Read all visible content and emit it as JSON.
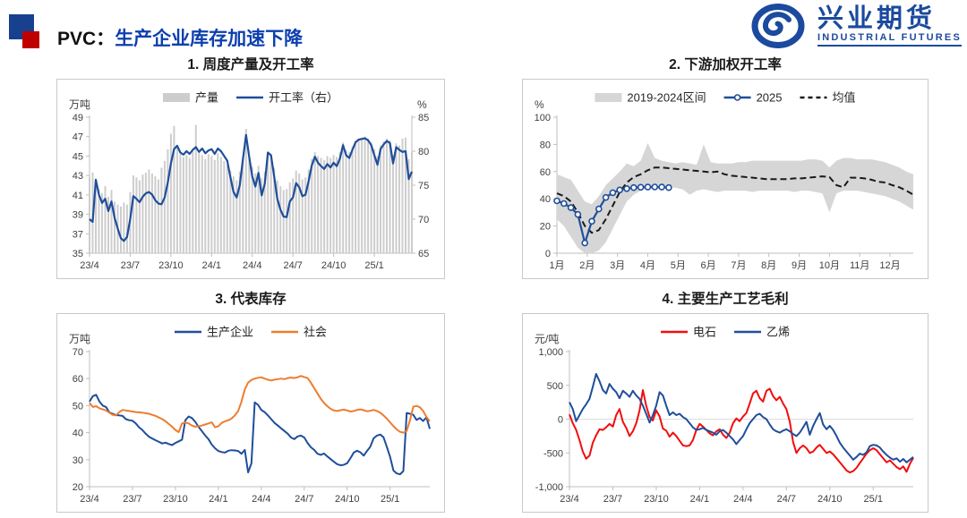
{
  "header": {
    "product": "PVC：",
    "headline": "生产企业库存加速下降"
  },
  "logo": {
    "cn": "兴业期货",
    "en": "INDUSTRIAL FUTURES"
  },
  "colors": {
    "blue": "#1f4e9b",
    "orange": "#ed7d31",
    "red": "#f20d0d",
    "gray": "#d6d6d6",
    "mean_dash": "#1a1a1a",
    "axis": "#bfbfbf",
    "tick_text": "#404040",
    "title_blue": "#0d3fae",
    "logo_blue": "#1b4a9e",
    "square_blue": "#17418f",
    "square_red": "#c00000"
  },
  "chart_data": [
    {
      "id": "c1",
      "type": "bar+line",
      "title": "1. 周度产量及开工率",
      "unit_left": "万吨",
      "unit_right": "%",
      "legend": [
        {
          "label": "产量",
          "type": "bar",
          "color": "#cdcdcd"
        },
        {
          "label": "开工率（右）",
          "type": "line",
          "color": "#1f4e9b"
        }
      ],
      "y_axis": {
        "min": 35,
        "max": 49,
        "step": 2
      },
      "right_axis": {
        "min": 65,
        "max": 85,
        "step": 5
      },
      "x_labels": [
        "23/4",
        "23/7",
        "23/10",
        "24/1",
        "24/4",
        "24/7",
        "24/10",
        "25/1"
      ],
      "bars": {
        "name": "产量",
        "color": "#cdcdcd",
        "values": [
          42.8,
          43.3,
          42.1,
          41.6,
          41.2,
          41.9,
          40.8,
          41.5,
          40.3,
          40,
          39.8,
          40.2,
          40,
          41.3,
          43,
          42.8,
          42.5,
          43.1,
          43.3,
          43.6,
          43.2,
          42.9,
          42.6,
          43.8,
          44.5,
          45.7,
          47.3,
          48.1,
          46.1,
          45.2,
          44.9,
          45.1,
          44.8,
          45.5,
          48.2,
          45.3,
          45.1,
          44.7,
          45.2,
          45,
          44.6,
          45.3,
          44.9,
          44.5,
          44.1,
          43.5,
          42.9,
          42.5,
          43.4,
          44.9,
          47.8,
          44.9,
          43.9,
          43.2,
          44,
          42.7,
          43.4,
          45.4,
          45.2,
          43.8,
          42.5,
          41.9,
          41.5,
          41.6,
          42.3,
          42.7,
          43.5,
          43.2,
          42.6,
          42.8,
          43.6,
          44.7,
          45.4,
          45,
          44.8,
          44.6,
          45,
          44.8,
          45.1,
          44.9,
          45.4,
          46.4,
          45.6,
          45.4,
          46,
          46.6,
          46.8,
          46.9,
          47,
          46.8,
          46.4,
          45.7,
          45,
          46.1,
          46.5,
          46.8,
          46.6,
          45.1,
          46.3,
          46.1,
          46.8,
          46.9,
          44.7,
          45.4
        ]
      },
      "line": {
        "name": "开工率（右）",
        "axis": "right",
        "color": "#1f4e9b",
        "values": [
          70,
          69.6,
          75.8,
          73.6,
          72.4,
          73,
          71.2,
          72.6,
          70.2,
          68.6,
          67.2,
          66.8,
          67.4,
          70,
          73.4,
          73,
          72.5,
          73.3,
          73.8,
          74,
          73.6,
          72.8,
          72.3,
          72.2,
          73.2,
          75.4,
          78.2,
          80.3,
          80.8,
          79.8,
          79.5,
          80,
          79.6,
          80.2,
          80.6,
          79.9,
          80.4,
          79.7,
          80.1,
          80.3,
          79.6,
          80.4,
          80,
          79.3,
          78.6,
          76.2,
          74,
          73.2,
          75,
          78.8,
          82.4,
          79.2,
          76.3,
          74.8,
          76.8,
          73.5,
          75.2,
          79.8,
          79.4,
          76.3,
          73,
          71.4,
          70.4,
          70.3,
          72.6,
          73.2,
          75.3,
          74.7,
          73.4,
          73.6,
          75.6,
          77.9,
          79.2,
          78.3,
          77.8,
          77.4,
          78.1,
          77.6,
          78.3,
          77.8,
          78.9,
          80.9,
          79.4,
          79,
          80.2,
          81.3,
          81.7,
          81.8,
          81.9,
          81.6,
          80.9,
          79.4,
          78,
          80.3,
          81,
          81.5,
          81.2,
          78.2,
          80.6,
          80.2,
          79.9,
          80,
          75.9,
          77
        ]
      }
    },
    {
      "id": "c2",
      "type": "band+line",
      "title": "2. 下游加权开工率",
      "unit_left": "%",
      "legend": [
        {
          "label": "2019-2024区间",
          "type": "bar",
          "color": "#d6d6d6"
        },
        {
          "label": "2025",
          "type": "line-marker",
          "color": "#1f4e9b"
        },
        {
          "label": "均值",
          "type": "dash",
          "color": "#1a1a1a"
        }
      ],
      "y_axis": {
        "min": 0,
        "max": 100,
        "step": 20
      },
      "x_labels": [
        "1月",
        "2月",
        "3月",
        "4月",
        "5月",
        "6月",
        "7月",
        "8月",
        "9月",
        "10月",
        "11月",
        "12月"
      ],
      "band": {
        "name": "2019-2024区间",
        "color": "#d6d6d6",
        "upper": [
          58,
          56,
          54,
          46,
          38,
          36,
          42,
          50,
          55,
          60,
          66,
          64,
          68,
          81,
          70,
          68,
          67,
          66,
          67,
          66,
          65,
          80,
          67,
          66,
          66,
          66,
          67,
          67,
          68,
          68,
          68,
          68,
          68,
          68,
          68,
          68,
          69,
          69,
          68,
          63,
          68,
          70,
          70,
          69,
          69,
          69,
          68,
          67,
          65,
          63,
          60,
          58
        ],
        "lower": [
          25,
          20,
          12,
          4,
          0,
          0,
          2,
          8,
          18,
          28,
          38,
          43,
          46,
          48,
          50,
          50,
          49,
          48,
          47,
          43,
          46,
          47,
          46,
          45,
          46,
          46,
          46,
          46,
          45,
          46,
          46,
          46,
          46,
          46,
          45,
          46,
          46,
          45,
          44,
          30,
          44,
          46,
          46,
          46,
          45,
          44,
          43,
          42,
          40,
          38,
          35,
          32
        ]
      },
      "mean": {
        "name": "均值",
        "color": "#1a1a1a",
        "values": [
          44,
          42,
          38,
          30,
          20,
          15,
          17,
          25,
          35,
          45,
          52,
          56,
          58,
          61,
          63,
          63,
          62.5,
          62,
          61.5,
          61,
          60.5,
          60,
          59.5,
          60,
          58,
          57,
          56.5,
          56,
          55.5,
          55,
          54.5,
          54.5,
          54.5,
          54.5,
          55,
          55,
          55.5,
          56,
          56.5,
          56,
          50,
          48.5,
          55.5,
          55.5,
          55,
          54,
          52.5,
          52,
          50,
          48.5,
          46,
          43
        ]
      },
      "series2025": {
        "name": "2025",
        "color": "#1f4e9b",
        "values": [
          38.5,
          36.5,
          33.5,
          28.5,
          7.5,
          23.5,
          32.5,
          41,
          44.5,
          46.5,
          47.5,
          48.2,
          48.5,
          48.6,
          48.7,
          48.6,
          48.2
        ]
      }
    },
    {
      "id": "c3",
      "type": "line",
      "title": "3. 代表库存",
      "unit_left": "万吨",
      "legend": [
        {
          "label": "生产企业",
          "type": "line",
          "color": "#1f4e9b"
        },
        {
          "label": "社会",
          "type": "line",
          "color": "#ed7d31"
        }
      ],
      "y_axis": {
        "min": 20,
        "max": 70,
        "step": 10
      },
      "x_labels": [
        "23/4",
        "23/7",
        "23/10",
        "24/1",
        "24/4",
        "24/7",
        "24/10",
        "25/1"
      ],
      "series": [
        {
          "name": "生产企业",
          "color": "#1f4e9b",
          "values": [
            51.5,
            53.5,
            54,
            51.5,
            50,
            49.5,
            47.5,
            47,
            46.5,
            46.4,
            46.2,
            45,
            44.6,
            44.4,
            43.4,
            42,
            41,
            39.6,
            38.5,
            37.8,
            37.2,
            36.6,
            36,
            36.3,
            35.8,
            35.4,
            36.2,
            36.8,
            37.4,
            44.6,
            46,
            45.4,
            44,
            42.2,
            40.6,
            39,
            37.6,
            35.6,
            34.2,
            33.2,
            32.8,
            32.6,
            33.3,
            33.5,
            33.4,
            33.2,
            32.2,
            33.6,
            25.3,
            28.6,
            51.2,
            50.3,
            48.4,
            47.6,
            46.4,
            45,
            43.6,
            42.6,
            41.6,
            40.6,
            39.6,
            38.2,
            37.6,
            38.6,
            38.9,
            38.2,
            36.2,
            34.6,
            33.6,
            32.2,
            31.8,
            32.3,
            31.2,
            30.2,
            29.2,
            28.3,
            27.9,
            28.1,
            28.7,
            30.6,
            32.6,
            33.3,
            32.7,
            31.5,
            33.2,
            34.8,
            37.9,
            38.9,
            39.3,
            38.3,
            34.8,
            31,
            26,
            24.9,
            24.6,
            25.8,
            47.3,
            47,
            46.6,
            44.7,
            45.4,
            44.3,
            45.7,
            41.4
          ]
        },
        {
          "name": "社会",
          "color": "#ed7d31",
          "values": [
            51,
            49.5,
            49.8,
            49,
            48.6,
            48.2,
            47.4,
            46.6,
            46.4,
            47.6,
            48.4,
            48.2,
            48,
            47.8,
            47.6,
            47.5,
            47.4,
            47.2,
            47,
            46.6,
            46.2,
            45.6,
            45,
            44.2,
            43.2,
            42.2,
            41,
            40.2,
            43.4,
            43.8,
            43.4,
            42.6,
            42.2,
            42.4,
            42.6,
            43,
            43.4,
            43.8,
            42,
            42.4,
            43.6,
            44.2,
            44.6,
            45.2,
            46.4,
            48,
            51.5,
            56,
            58.5,
            59.5,
            60,
            60.3,
            60.5,
            60,
            59.6,
            59.3,
            59.6,
            59.8,
            60,
            59.8,
            60.2,
            60.4,
            60.2,
            60.5,
            61,
            60.6,
            60.2,
            58.5,
            56.5,
            54.5,
            52.5,
            51,
            49.8,
            48.8,
            48.2,
            48,
            48.3,
            48.5,
            48.2,
            47.8,
            48,
            48.4,
            48.6,
            48.3,
            47.9,
            48.1,
            48.4,
            48,
            47.4,
            46.4,
            45.2,
            43.8,
            42.4,
            41.2,
            40.3,
            40,
            40.6,
            44.6,
            49.6,
            49.9,
            49.4,
            48,
            45.8,
            44.2
          ]
        }
      ]
    },
    {
      "id": "c4",
      "type": "line",
      "title": "4. 主要生产工艺毛利",
      "unit_left": "元/吨",
      "zero_line": true,
      "legend": [
        {
          "label": "电石",
          "type": "line",
          "color": "#f20d0d"
        },
        {
          "label": "乙烯",
          "type": "line",
          "color": "#1f4e9b"
        }
      ],
      "y_axis": {
        "min": -1000,
        "max": 1000,
        "step": 500,
        "labels": [
          "-1,000",
          "-500",
          "0",
          "500",
          "1,000"
        ]
      },
      "x_labels": [
        "23/4",
        "23/7",
        "23/10",
        "24/1",
        "24/4",
        "24/7",
        "24/10",
        "25/1"
      ],
      "series": [
        {
          "name": "电石",
          "color": "#f20d0d",
          "values": [
            70,
            -60,
            -160,
            -310,
            -480,
            -585,
            -540,
            -350,
            -240,
            -150,
            -160,
            -120,
            -70,
            -110,
            60,
            150,
            -40,
            -130,
            -250,
            -180,
            -60,
            130,
            430,
            200,
            30,
            -20,
            130,
            40,
            -140,
            -170,
            -260,
            -200,
            -250,
            -320,
            -390,
            -400,
            -390,
            -310,
            -160,
            -70,
            -110,
            -160,
            -210,
            -240,
            -180,
            -150,
            -230,
            -280,
            -200,
            -60,
            10,
            -30,
            40,
            90,
            230,
            380,
            420,
            310,
            260,
            420,
            450,
            340,
            280,
            330,
            230,
            150,
            -40,
            -340,
            -500,
            -430,
            -390,
            -430,
            -500,
            -480,
            -420,
            -380,
            -440,
            -500,
            -480,
            -520,
            -580,
            -640,
            -700,
            -760,
            -790,
            -770,
            -720,
            -650,
            -580,
            -510,
            -460,
            -430,
            -460,
            -520,
            -580,
            -640,
            -610,
            -660,
            -710,
            -740,
            -700,
            -780,
            -660,
            -575
          ]
        },
        {
          "name": "乙烯",
          "color": "#1f4e9b",
          "values": [
            250,
            150,
            -30,
            60,
            150,
            220,
            300,
            480,
            670,
            560,
            430,
            380,
            520,
            450,
            400,
            310,
            420,
            380,
            330,
            420,
            350,
            300,
            200,
            80,
            -50,
            60,
            200,
            400,
            350,
            200,
            60,
            100,
            60,
            80,
            30,
            0,
            -60,
            -120,
            -160,
            -150,
            -130,
            -160,
            -180,
            -200,
            -230,
            -180,
            -160,
            -200,
            -250,
            -300,
            -370,
            -310,
            -250,
            -150,
            -60,
            0,
            60,
            80,
            30,
            0,
            -80,
            -150,
            -180,
            -200,
            -170,
            -150,
            -180,
            -220,
            -250,
            -200,
            -120,
            -40,
            -230,
            -100,
            0,
            90,
            -80,
            -150,
            -100,
            -160,
            -250,
            -350,
            -420,
            -480,
            -540,
            -600,
            -560,
            -510,
            -530,
            -490,
            -400,
            -380,
            -390,
            -420,
            -480,
            -530,
            -570,
            -600,
            -580,
            -630,
            -590,
            -640,
            -600,
            -560
          ]
        }
      ]
    }
  ]
}
